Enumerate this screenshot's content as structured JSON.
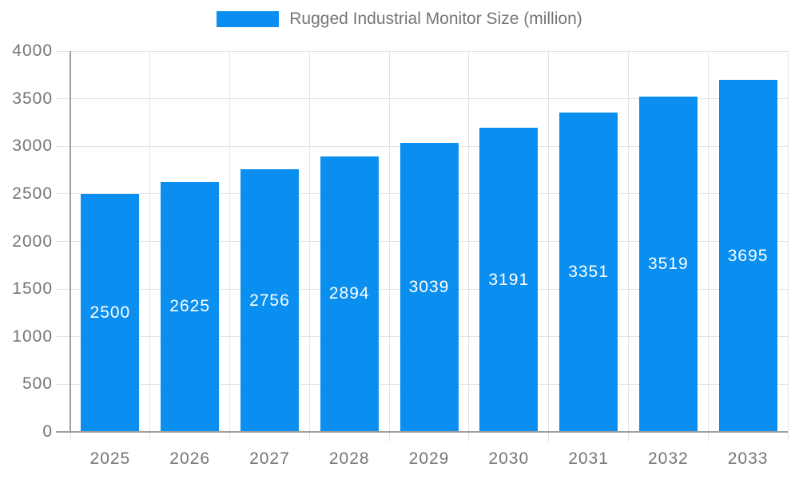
{
  "chart_data": {
    "type": "bar",
    "title": "Rugged Industrial Monitor Size (million)",
    "legend": {
      "position": "top",
      "label": "Rugged Industrial Monitor Size (million)"
    },
    "categories": [
      "2025",
      "2026",
      "2027",
      "2028",
      "2029",
      "2030",
      "2031",
      "2032",
      "2033"
    ],
    "series": [
      {
        "name": "Rugged Industrial Monitor Size (million)",
        "values": [
          2500,
          2625,
          2756,
          2894,
          3039,
          3191,
          3351,
          3519,
          3695
        ]
      }
    ],
    "xlabel": "",
    "ylabel": "",
    "ylim": [
      0,
      4000
    ],
    "yticks": [
      0,
      500,
      1000,
      1500,
      2000,
      2500,
      3000,
      3500,
      4000
    ],
    "grid": true,
    "value_labels": {
      "show": true,
      "position": "center",
      "color": "#ffffff"
    },
    "colors": {
      "bar": "#0a8ff0",
      "grid": "#e4e4e4",
      "axis": "#9e9e9e",
      "tick_label": "#757575",
      "legend_text": "#757575",
      "background": "#ffffff"
    }
  }
}
